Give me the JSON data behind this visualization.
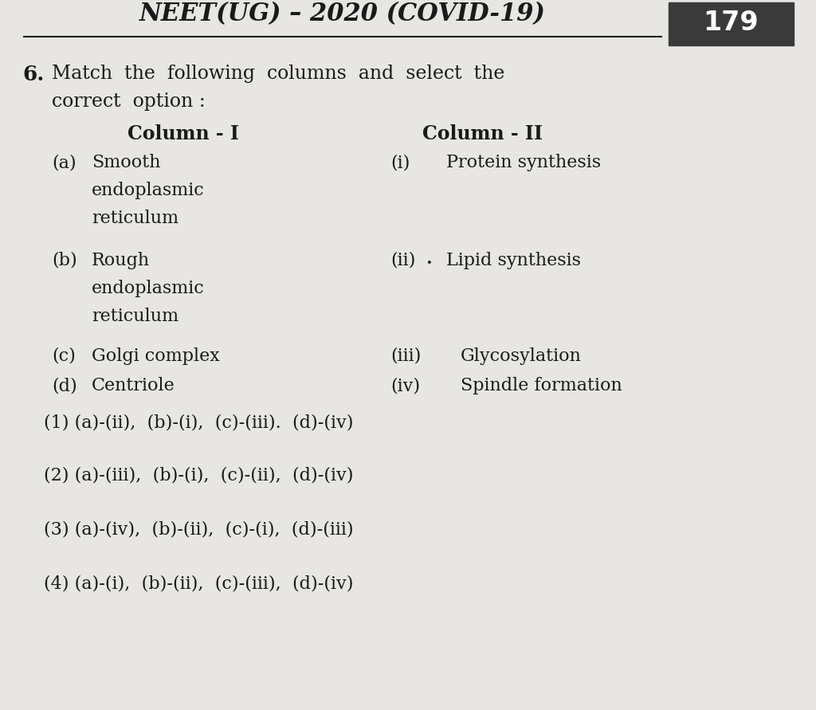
{
  "background_color": "#e8e6e3",
  "title_text": "NEET(UG) – 2020 (COVID-19)",
  "page_number": "179",
  "question_number": "6.",
  "text_color": "#1a1a1a",
  "col1_header": "Column - I",
  "col2_header": "Column - II",
  "title_font_size": 22,
  "header_font_size": 17,
  "body_font_size": 16,
  "option_font_size": 16,
  "question_font_size": 17
}
